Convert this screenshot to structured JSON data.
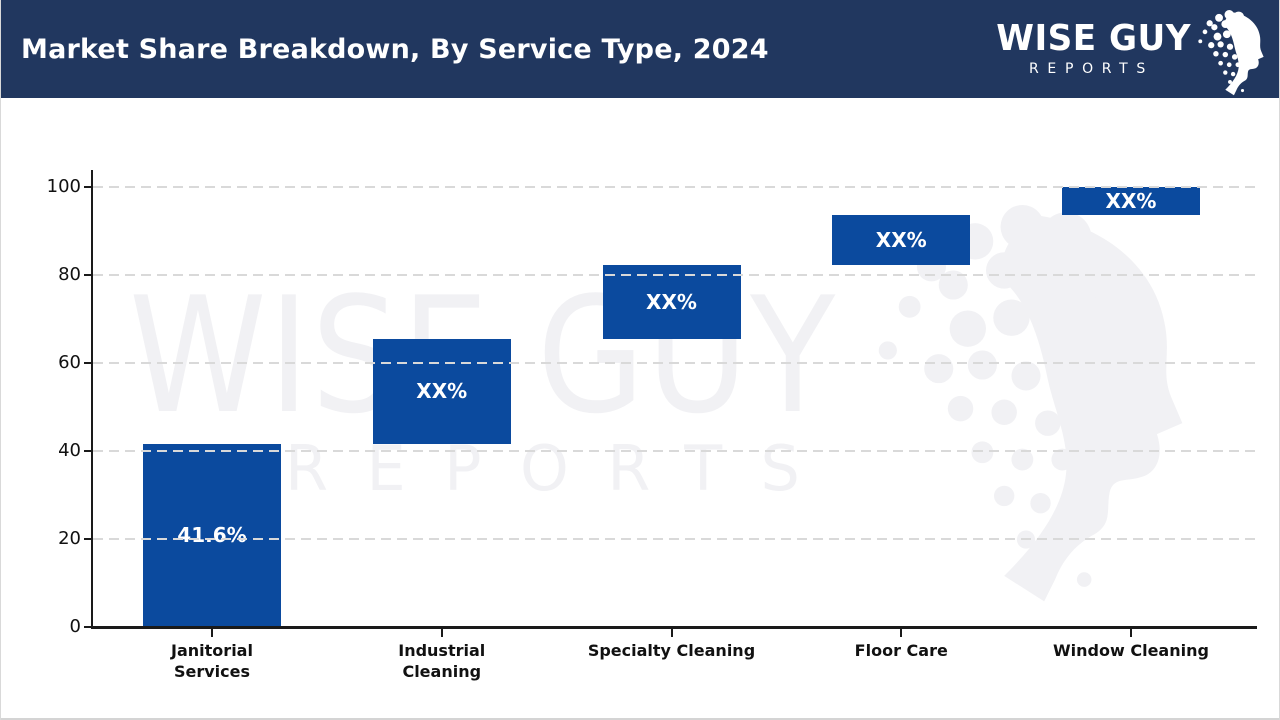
{
  "header": {
    "title": "Market Share Breakdown, By Service Type, 2024",
    "logo": {
      "line1": "WISE GUY",
      "line2": "REPORTS"
    }
  },
  "watermark": {
    "line1": "WISE GUY",
    "line2": "REPORTS"
  },
  "chart_data": {
    "type": "bar",
    "subtype": "waterfall",
    "title": "Market Share Breakdown, By Service Type, 2024",
    "xlabel": "",
    "ylabel": "",
    "ylim": [
      0,
      105
    ],
    "yticks": [
      0,
      20,
      40,
      60,
      80,
      100
    ],
    "grid": "horizontal-dashed",
    "legend": "none",
    "bar_color": "#0b4a9e",
    "categories": [
      {
        "lines": [
          "Janitorial",
          "Services"
        ]
      },
      {
        "lines": [
          "Industrial",
          "Cleaning"
        ]
      },
      {
        "lines": [
          "Specialty Cleaning"
        ]
      },
      {
        "lines": [
          "Floor Care"
        ]
      },
      {
        "lines": [
          "Window Cleaning"
        ]
      }
    ],
    "segments": [
      {
        "category": "Janitorial Services",
        "label": "41.6%",
        "start": 0,
        "end": 41.6,
        "value": 41.6
      },
      {
        "category": "Industrial Cleaning",
        "label": "XX%",
        "start": 41.6,
        "end": 65.5,
        "value": 23.9
      },
      {
        "category": "Specialty Cleaning",
        "label": "XX%",
        "start": 65.5,
        "end": 82.2,
        "value": 16.7
      },
      {
        "category": "Floor Care",
        "label": "XX%",
        "start": 82.2,
        "end": 93.7,
        "value": 11.5
      },
      {
        "category": "Window Cleaning",
        "label": "XX%",
        "start": 93.7,
        "end": 100,
        "value": 6.3
      }
    ]
  },
  "colors": {
    "header_bg": "#21375f",
    "bar": "#0b4a9e",
    "gridline": "#d9d9d9",
    "watermark": "#f1f1f4",
    "axis": "#1a1a1a"
  }
}
